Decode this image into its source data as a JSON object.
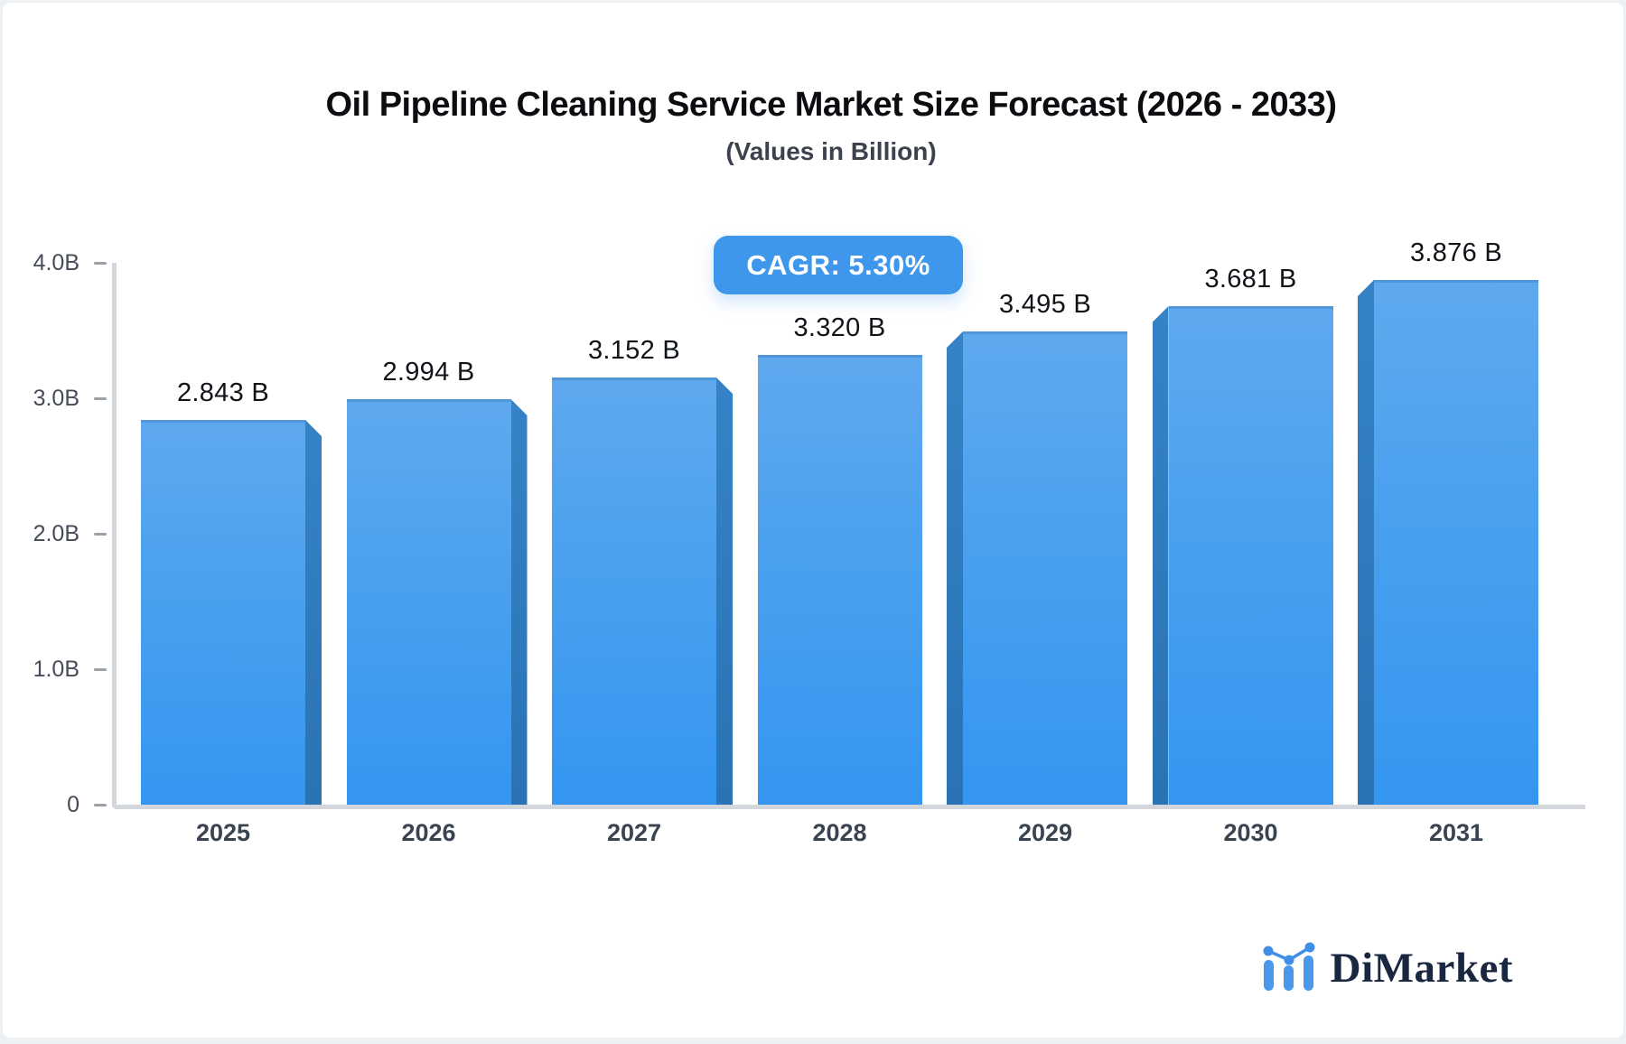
{
  "header": {
    "title": "Oil Pipeline Cleaning Service Market Size Forecast (2026 - 2033)",
    "subtitle": "(Values in Billion)"
  },
  "badge": {
    "label": "CAGR: 5.30%",
    "background": "#3e97ea",
    "text_color": "#ffffff"
  },
  "chart_data": {
    "type": "bar",
    "title": "Oil Pipeline Cleaning Service Market Size Forecast (2026 - 2033)",
    "subtitle": "(Values in Billion)",
    "unit": "Billion",
    "categories": [
      "2025",
      "2026",
      "2027",
      "2028",
      "2029",
      "2030",
      "2031"
    ],
    "values": [
      2.843,
      2.994,
      3.152,
      3.32,
      3.495,
      3.681,
      3.876
    ],
    "value_labels": [
      "2.843 B",
      "2.994 B",
      "3.152 B",
      "3.320 B",
      "3.495 B",
      "3.681 B",
      "3.876 B"
    ],
    "ylim": [
      0,
      4.0
    ],
    "yticks": [
      {
        "value": 0,
        "label": "0"
      },
      {
        "value": 1.0,
        "label": "1.0B"
      },
      {
        "value": 2.0,
        "label": "2.0B"
      },
      {
        "value": 3.0,
        "label": "3.0B"
      },
      {
        "value": 4.0,
        "label": "4.0B"
      }
    ],
    "grid": false,
    "legend": false,
    "bar_color_top": "#5fa9ee",
    "bar_color_bottom": "#3496f0",
    "bar_side_color": "#2d78b8",
    "axis_color": "#d3d7db"
  },
  "logo": {
    "text": "DiMarket",
    "icon": "bar-chart-logo-icon",
    "icon_color": "#4a98ec",
    "text_color": "#1a2740"
  }
}
